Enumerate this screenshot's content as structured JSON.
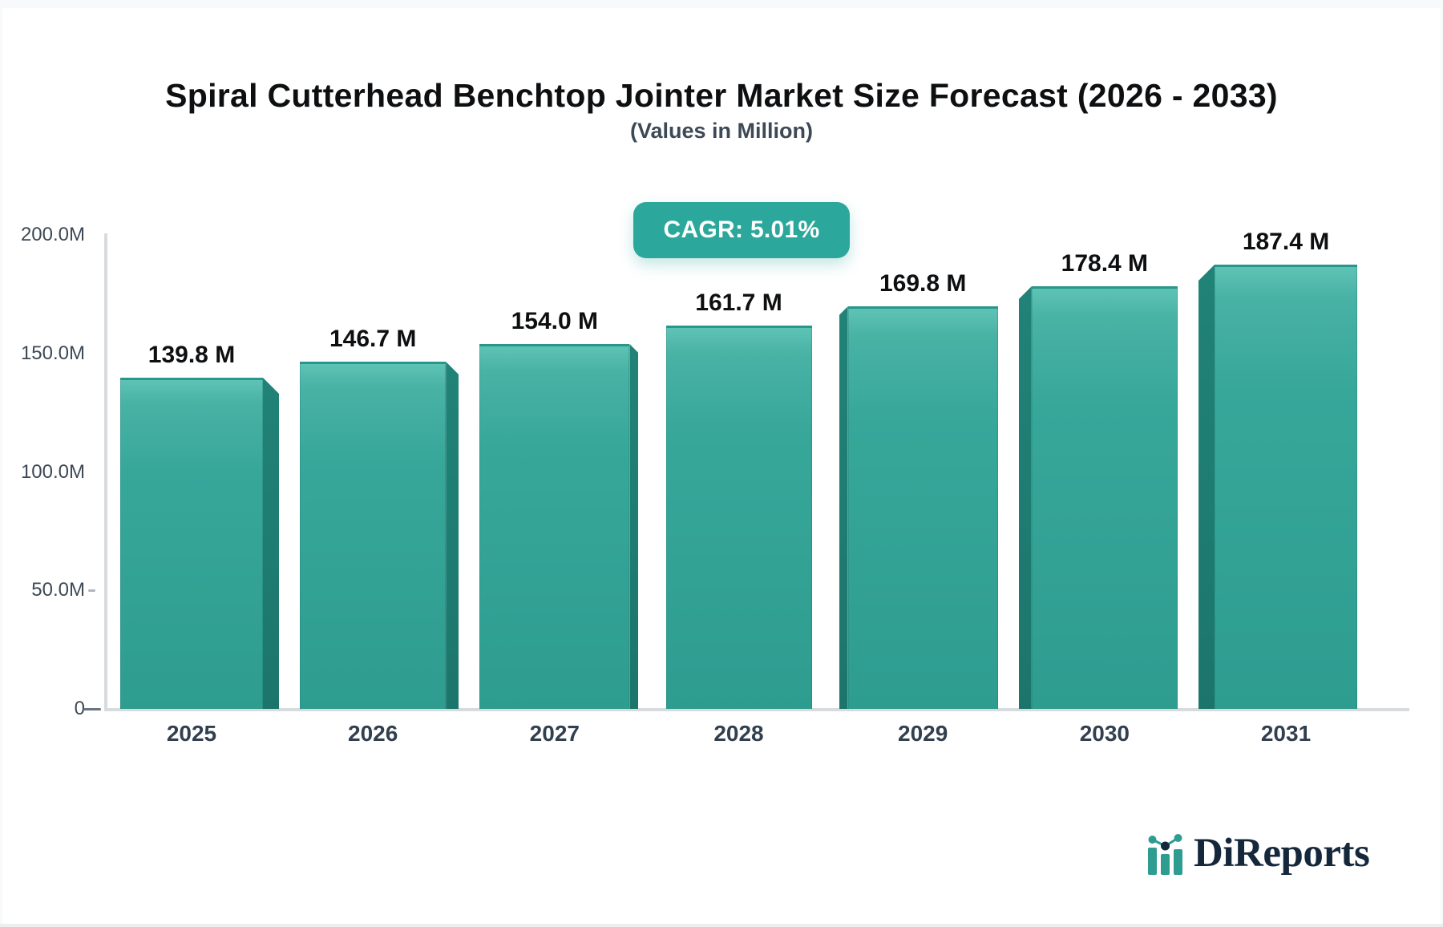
{
  "page": {
    "title": "Spiral Cutterhead Benchtop Jointer Market Size Forecast (2026 - 2033)",
    "subtitle": "(Values in Million)",
    "cagr_badge": "CAGR: 5.01%"
  },
  "chart_data": {
    "type": "bar",
    "title": "Spiral Cutterhead Benchtop Jointer Market Size Forecast (2026 - 2033)",
    "subtitle": "(Values in Million)",
    "cagr": "5.01%",
    "categories": [
      "2025",
      "2026",
      "2027",
      "2028",
      "2029",
      "2030",
      "2031"
    ],
    "values": [
      139.8,
      146.7,
      154.0,
      161.7,
      169.8,
      178.4,
      187.4
    ],
    "value_labels": [
      "139.8 M",
      "146.7 M",
      "154.0 M",
      "161.7 M",
      "169.8 M",
      "178.4 M",
      "187.4 M"
    ],
    "xlabel": "",
    "ylabel": "",
    "ylim": [
      0,
      200
    ],
    "grid": false,
    "legend": "none",
    "y_ticks": [
      {
        "value": 200,
        "label": "200.0M",
        "tick": false
      },
      {
        "value": 150,
        "label": "150.0M",
        "tick": false
      },
      {
        "value": 100,
        "label": "100.0M",
        "tick": false
      },
      {
        "value": 50,
        "label": "50.0M",
        "tick": true
      },
      {
        "value": 0,
        "label": "0",
        "tick": true
      }
    ]
  },
  "logo": {
    "text": "DiReports"
  },
  "colors": {
    "bg": "#ffffff",
    "face_top": "#5ec3b5",
    "face_mid": "#37a79a",
    "face_bottom": "#2e9d90",
    "face_edge": "#27968b",
    "side_dark": "#1f7e74",
    "badge": "#2ba89b",
    "axis": "#d8dbde",
    "text_dark": "#0d0f11",
    "text_axis": "#3d4956",
    "logo_navy": "#15273b",
    "logo_teal": "#2f9c91"
  }
}
